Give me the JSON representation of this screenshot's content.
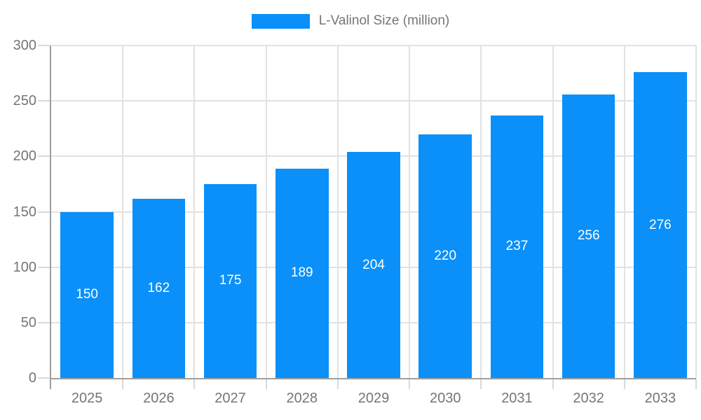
{
  "legend": {
    "label": "L-Valinol Size (million)"
  },
  "chart_data": {
    "type": "bar",
    "title": "L-Valinol Size (million)",
    "series_name": "L-Valinol Size (million)",
    "categories": [
      "2025",
      "2026",
      "2027",
      "2028",
      "2029",
      "2030",
      "2031",
      "2032",
      "2033"
    ],
    "values": [
      150,
      162,
      175,
      189,
      204,
      220,
      237,
      256,
      276
    ],
    "xlabel": "",
    "ylabel": "",
    "ylim": [
      0,
      300
    ],
    "yticks": [
      0,
      50,
      100,
      150,
      200,
      250,
      300
    ],
    "grid": true,
    "legend_position": "top",
    "value_labels": "centered-inside-white",
    "colors": {
      "bar": "#0a90f8",
      "value_label": "#ffffff",
      "axis": "#9e9e9e",
      "grid": "#e2e2e2",
      "tick_mark": "#d9d9d9",
      "tick_text": "#757575",
      "legend_text": "#757575",
      "background": "#ffffff"
    }
  }
}
